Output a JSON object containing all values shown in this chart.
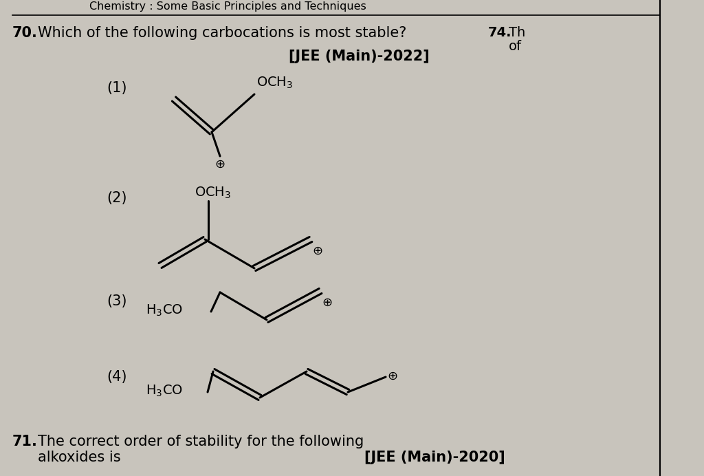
{
  "background_color": "#c8c4bc",
  "header_text": "Chemistry : Some Basic Principles and Techniques",
  "question_number": "70.",
  "question_text": "Which of the following carbocations is most stable?",
  "jee_tag": "[JEE (Main)-2022]",
  "side_number": "74.",
  "side_text_1": "Th",
  "side_text_2": "of",
  "footer_number": "71.",
  "footer_text1": "The correct order of stability for the following",
  "footer_text2": "alkoxides is",
  "footer_tag": "[JEE (Main)-2020]",
  "lw": 2.2
}
